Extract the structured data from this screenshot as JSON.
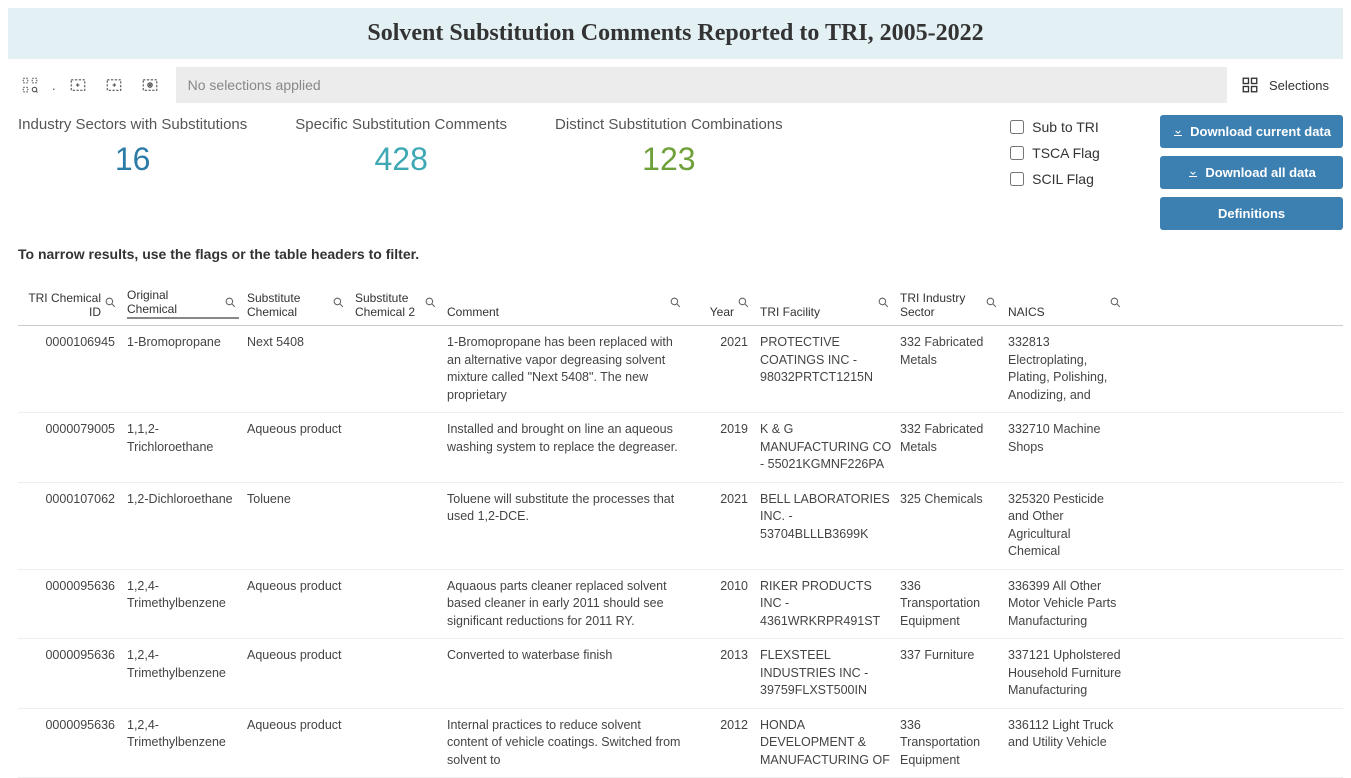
{
  "title": "Solvent Substitution Comments Reported to TRI, 2005-2022",
  "selections_text": "No selections applied",
  "selections_label": "Selections",
  "kpis": [
    {
      "label": "Industry Sectors with Substitutions",
      "value": "16",
      "cls": "blue"
    },
    {
      "label": "Specific Substitution Comments",
      "value": "428",
      "cls": "teal"
    },
    {
      "label": "Distinct Substitution Combinations",
      "value": "123",
      "cls": "green"
    }
  ],
  "flags": [
    {
      "label": "Sub to TRI"
    },
    {
      "label": "TSCA Flag"
    },
    {
      "label": "SCIL Flag"
    }
  ],
  "buttons": {
    "download_current": "Download current data",
    "download_all": "Download all data",
    "definitions": "Definitions"
  },
  "filter_hint": "To narrow results, use the flags or the table headers to filter.",
  "columns": [
    {
      "label": "TRI Chemical ID",
      "cls": "col-id"
    },
    {
      "label": "Original Chemical",
      "cls": "col-orig"
    },
    {
      "label": "Substitute Chemical",
      "cls": "col-sub"
    },
    {
      "label": "Substitute Chemical 2",
      "cls": "col-sub2"
    },
    {
      "label": "Comment",
      "cls": "col-comment"
    },
    {
      "label": "Year",
      "cls": "col-year"
    },
    {
      "label": "TRI Facility",
      "cls": "col-facility"
    },
    {
      "label": "TRI Industry Sector",
      "cls": "col-sector"
    },
    {
      "label": "NAICS",
      "cls": "col-naics"
    }
  ],
  "rows": [
    {
      "id": "0000106945",
      "orig": "1-Bromopropane",
      "sub": "Next 5408",
      "sub2": "",
      "comment": "1-Bromopropane has been replaced with an alternative vapor degreasing solvent mixture called \"Next 5408\". The new proprietary",
      "year": "2021",
      "facility": "PROTECTIVE COATINGS INC - 98032PRTCT1215N",
      "sector": "332 Fabricated Metals",
      "naics": "332813 Electroplating, Plating, Polishing, Anodizing, and"
    },
    {
      "id": "0000079005",
      "orig": "1,1,2-Trichloroethane",
      "sub": "Aqueous product",
      "sub2": "",
      "comment": "Installed and brought on line an aqueous washing system to replace the degreaser.",
      "year": "2019",
      "facility": "K & G MANUFACTURING CO - 55021KGMNF226PA",
      "sector": "332 Fabricated Metals",
      "naics": "332710 Machine Shops"
    },
    {
      "id": "0000107062",
      "orig": "1,2-Dichloroethane",
      "sub": "Toluene",
      "sub2": "",
      "comment": "Toluene will substitute the processes that used 1,2-DCE.",
      "year": "2021",
      "facility": "BELL LABORATORIES INC. - 53704BLLLB3699K",
      "sector": "325 Chemicals",
      "naics": "325320 Pesticide and Other Agricultural Chemical"
    },
    {
      "id": "0000095636",
      "orig": "1,2,4-Trimethylbenzene",
      "sub": "Aqueous product",
      "sub2": "",
      "comment": "Aquaous parts cleaner replaced solvent based cleaner in early 2011 should see significant reductions for 2011 RY.",
      "year": "2010",
      "facility": "RIKER PRODUCTS INC - 4361WRKRPR491ST",
      "sector": "336 Transportation Equipment",
      "naics": "336399 All Other Motor Vehicle Parts Manufacturing"
    },
    {
      "id": "0000095636",
      "orig": "1,2,4-Trimethylbenzene",
      "sub": "Aqueous product",
      "sub2": "",
      "comment": "Converted to waterbase finish",
      "year": "2013",
      "facility": "FLEXSTEEL INDUSTRIES INC - 39759FLXST500IN",
      "sector": "337 Furniture",
      "naics": "337121 Upholstered Household Furniture Manufacturing"
    },
    {
      "id": "0000095636",
      "orig": "1,2,4-Trimethylbenzene",
      "sub": "Aqueous product",
      "sub2": "",
      "comment": "Internal practices to reduce solvent content of vehicle coatings. Switched from solvent to",
      "year": "2012",
      "facility": "HONDA DEVELOPMENT & MANUFACTURING OF",
      "sector": "336 Transportation Equipment",
      "naics": "336112 Light Truck and Utility Vehicle"
    }
  ]
}
